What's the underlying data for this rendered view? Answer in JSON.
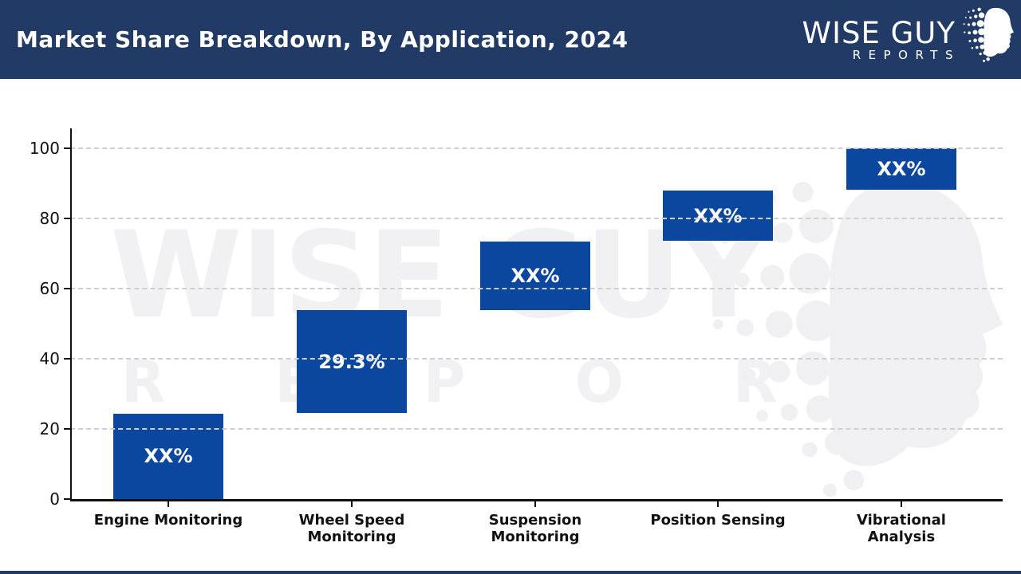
{
  "header": {
    "title": "Market Share Breakdown, By Application, 2024",
    "bg_color": "#213a66",
    "text_color": "#ffffff",
    "logo": {
      "line1": "WISE GUY",
      "line2": "REPORTS"
    }
  },
  "watermark": {
    "line1": "WISE GUY",
    "line2": "R E P O R T S",
    "color": "#f1f1f4"
  },
  "footer": {
    "bg_color": "#213a66"
  },
  "chart_data": {
    "type": "bar",
    "subtype": "waterfall",
    "title": "Market Share Breakdown, By Application, 2024",
    "categories": [
      "Engine Monitoring",
      "Wheel Speed\nMonitoring",
      "Suspension\nMonitoring",
      "Position Sensing",
      "Vibrational\nAnalysis"
    ],
    "segments": [
      {
        "category": "Engine Monitoring",
        "label": "XX%",
        "start": 0,
        "end": 24.4
      },
      {
        "category": "Wheel Speed Monitoring",
        "label": "29.3%",
        "start": 24.5,
        "end": 53.8
      },
      {
        "category": "Suspension Monitoring",
        "label": "XX%",
        "start": 53.9,
        "end": 73.4
      },
      {
        "category": "Position Sensing",
        "label": "XX%",
        "start": 73.6,
        "end": 87.9
      },
      {
        "category": "Vibrational Analysis",
        "label": "XX%",
        "start": 88.1,
        "end": 100
      }
    ],
    "xlabel": "",
    "ylabel": "",
    "ylim": [
      0,
      100
    ],
    "yticks": [
      0,
      20,
      40,
      60,
      80,
      100
    ],
    "grid": "horizontal-dashed-over-bars",
    "legend": "none",
    "bar_color": "#0b479e",
    "bar_label_color": "#ffffff",
    "gridline_color": "#cfcfcf",
    "axis_color": "#111111"
  }
}
